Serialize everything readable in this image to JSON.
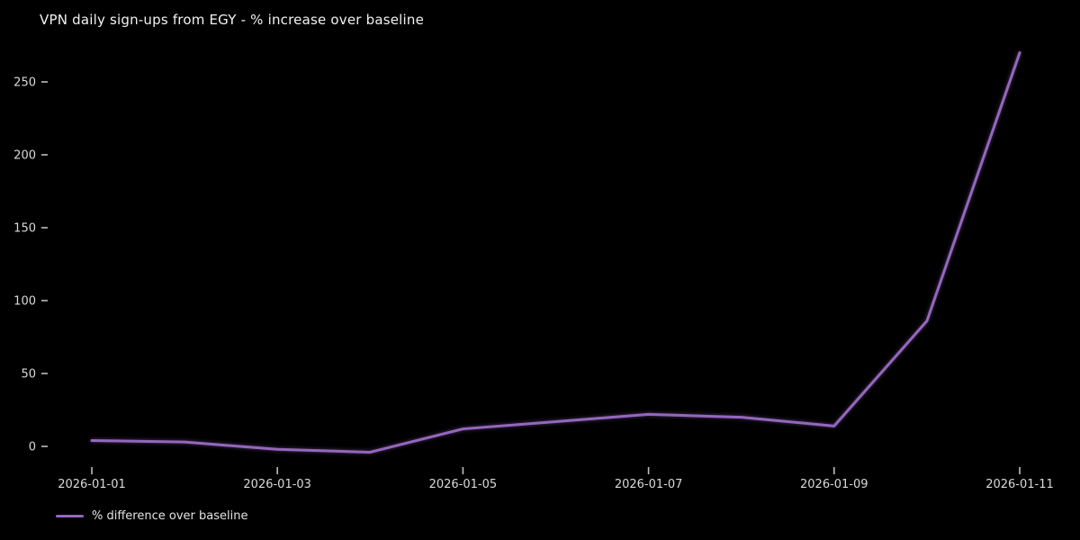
{
  "title": "VPN daily sign-ups from EGY - % increase over baseline",
  "legend": {
    "label": "% difference over baseline"
  },
  "colors": {
    "background": "#000000",
    "line": "#9467bd",
    "title_text": "#f2f2f2",
    "tick_text": "#d9d9d9",
    "tick_mark": "#bdbdbd"
  },
  "chart_data": {
    "type": "line",
    "title": "VPN daily sign-ups from EGY - % increase over baseline",
    "x": [
      "2026-01-01",
      "2026-01-02",
      "2026-01-03",
      "2026-01-04",
      "2026-01-05",
      "2026-01-06",
      "2026-01-07",
      "2026-01-08",
      "2026-01-09",
      "2026-01-10",
      "2026-01-11"
    ],
    "series": [
      {
        "name": "% difference over baseline",
        "values": [
          4,
          3,
          -2,
          -4,
          12,
          17,
          22,
          20,
          14,
          86,
          270
        ]
      }
    ],
    "xlabel": "",
    "ylabel": "",
    "yticks": [
      0,
      50,
      100,
      150,
      200,
      250
    ],
    "xtick_label_every": 2,
    "ylim": [
      -18,
      284
    ],
    "grid": false,
    "spines": false,
    "legend_position": "lower-left-outside",
    "background": "#000000",
    "line_color": "#9467bd"
  }
}
